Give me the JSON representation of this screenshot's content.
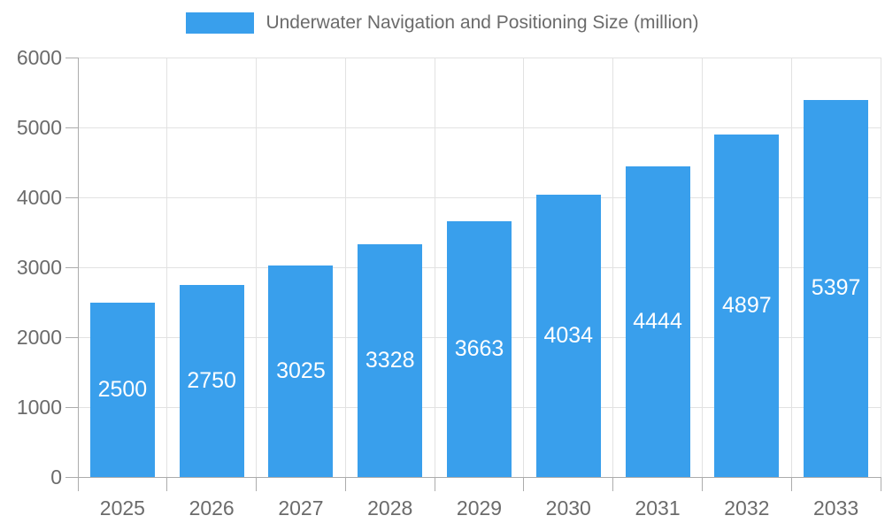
{
  "chart_data": {
    "type": "bar",
    "title": "Underwater Navigation and Positioning Size (million)",
    "categories": [
      "2025",
      "2026",
      "2027",
      "2028",
      "2029",
      "2030",
      "2031",
      "2032",
      "2033"
    ],
    "values": [
      2500,
      2750,
      3025,
      3328,
      3663,
      4034,
      4444,
      4897,
      5397
    ],
    "series": [
      {
        "name": "Underwater Navigation and Positioning Size (million)",
        "values": [
          2500,
          2750,
          3025,
          3328,
          3663,
          4034,
          4444,
          4897,
          5397
        ]
      }
    ],
    "xlabel": "",
    "ylabel": "",
    "ylim": [
      0,
      6000
    ],
    "y_ticks": [
      0,
      1000,
      2000,
      3000,
      4000,
      5000,
      6000
    ],
    "grid": true,
    "legend_position": "top",
    "value_labels": "inside-center",
    "colors": {
      "bar": "#399FEC",
      "value_label": "#FFFFFF",
      "axis_text": "#6B6B6B",
      "grid_line": "#E2E2E2",
      "axis_line": "#ACACAC",
      "background": "#FFFFFF"
    }
  }
}
